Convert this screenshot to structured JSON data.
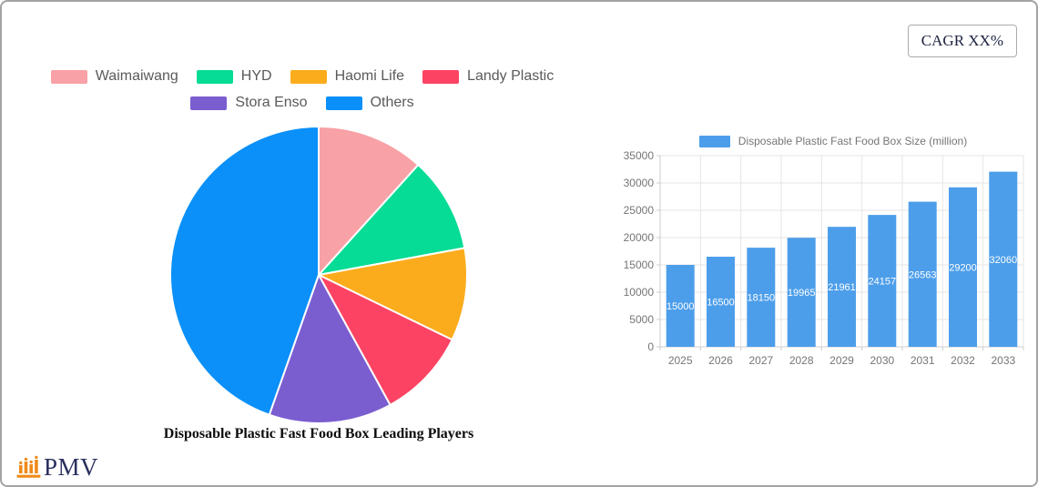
{
  "page": {
    "cagr_label": "CAGR XX%",
    "brand_text": "PMV",
    "brand_icon": "bar-chart-logo-icon",
    "accent_colors": {
      "page_border": "#a3a3a3",
      "brand_navy": "#2a2f5e",
      "brand_orange": "#f08a19"
    }
  },
  "chart_data": [
    {
      "type": "pie",
      "title": "Disposable Plastic Fast Food Box Leading Players",
      "labels": [
        "Waimaiwang",
        "HYD",
        "Haomi Life",
        "Landy Plastic",
        "Stora Enso",
        "Others"
      ],
      "values": [
        11.7,
        10.4,
        10.1,
        9.8,
        13.4,
        44.6
      ],
      "colors": [
        "#f8a1a6",
        "#06dc95",
        "#fbac1c",
        "#fc4363",
        "#7a5ed0",
        "#0a90f8"
      ],
      "start_angle_deg_from_top": 0,
      "direction": "clockwise",
      "slice_stroke": "#ffffff",
      "legend_position": "top",
      "legend_row_item_counts": [
        4,
        2
      ],
      "legend_text_color": "#5a5a5a"
    },
    {
      "type": "bar",
      "series_name": "Disposable Plastic Fast Food Box Size (million)",
      "categories": [
        "2025",
        "2026",
        "2027",
        "2028",
        "2029",
        "2030",
        "2031",
        "2032",
        "2033"
      ],
      "values": [
        15000,
        16500,
        18150,
        19965,
        21961,
        24157,
        26563,
        29200,
        32060
      ],
      "ylim": [
        0,
        35000
      ],
      "y_ticks": [
        0,
        5000,
        10000,
        15000,
        20000,
        25000,
        30000,
        35000
      ],
      "bar_color": "#4d9eea",
      "value_label_color": "#ffffff",
      "value_label_position": "inside-middle",
      "axis_text_color": "#757575",
      "grid": true,
      "gridline_color": "#e6e6e6",
      "axis_line_color": "#cccccc",
      "legend_position": "top"
    }
  ]
}
